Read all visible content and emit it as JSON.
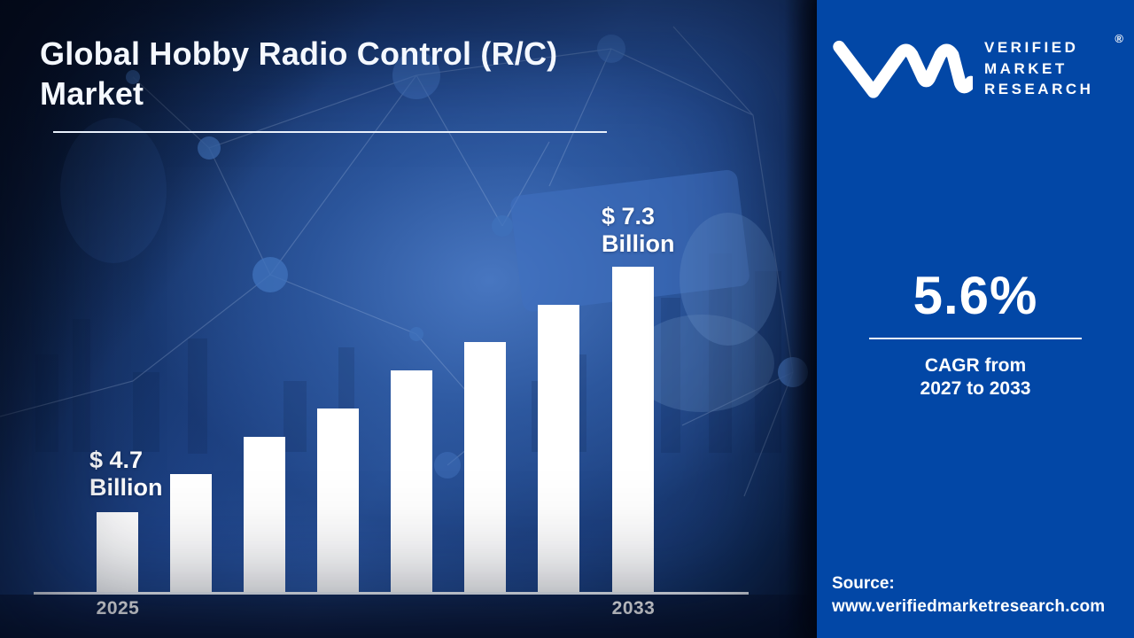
{
  "header": {
    "title_line1": "Global Hobby Radio Control (R/C)",
    "title_line2": "Market"
  },
  "chart_data": {
    "type": "bar",
    "title": "Global Hobby Radio Control (R/C) Market",
    "bar_count": 8,
    "x_visible_tick_labels": [
      "2025",
      "2033"
    ],
    "values": [
      4.7,
      5.1,
      5.5,
      5.8,
      6.2,
      6.5,
      6.9,
      7.3
    ],
    "values_unit": "USD Billion",
    "values_note": "Only first (2025, $4.7B) and last (2033, $7.3B) bars are labeled on the chart; intermediate values estimated from bar heights.",
    "callouts": {
      "first": {
        "amount": "$ 4.7",
        "unit": "Billion"
      },
      "last": {
        "amount": "$ 7.3",
        "unit": "Billion"
      }
    },
    "bar_color": "#ffffff",
    "axis_line_color": "#f2f6fc",
    "grid": false,
    "legend": false
  },
  "right_panel": {
    "logo": {
      "monogram": "vmr-monogram",
      "brand_lines": [
        "VERIFIED",
        "MARKET",
        "RESEARCH"
      ],
      "registered_mark": "®"
    },
    "cagr": {
      "value": "5.6%",
      "caption_line1": "CAGR from",
      "caption_line2": "2027 to 2033"
    },
    "source": {
      "label": "Source:",
      "url": "www.verifiedmarketresearch.com"
    }
  },
  "colors": {
    "panel_blue": "#0247a6",
    "bar_white": "#ffffff",
    "background_navy_dark": "#081631",
    "background_blue_mid": "#2a55a0",
    "text_white": "#ffffff"
  }
}
